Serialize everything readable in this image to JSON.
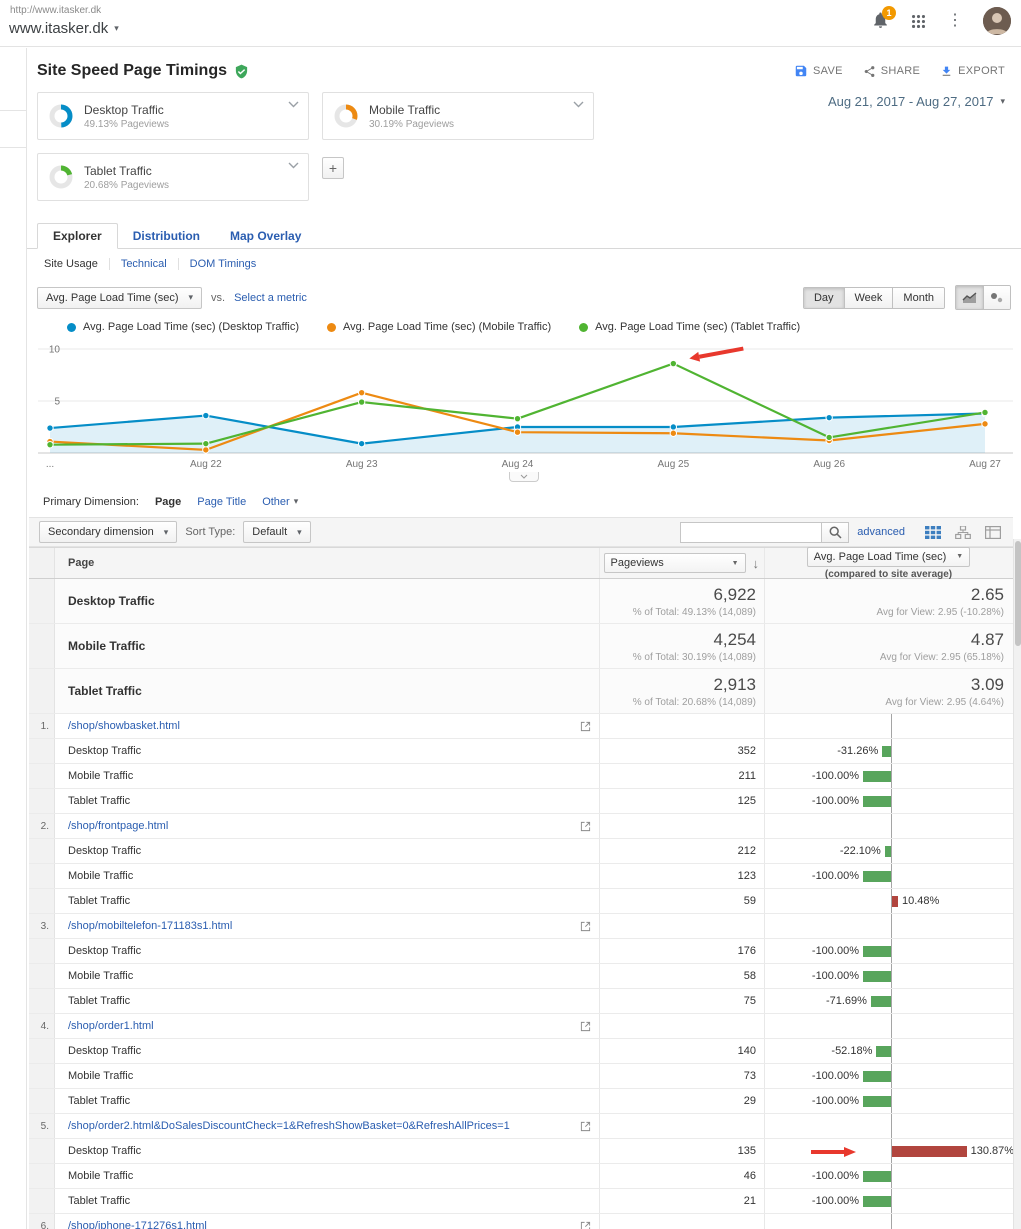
{
  "topbar": {
    "url_label": "http://www.itasker.dk",
    "account_name": "www.itasker.dk",
    "notification_count": "1"
  },
  "report": {
    "title": "Site Speed Page Timings",
    "actions": {
      "save": "SAVE",
      "share": "SHARE",
      "export": "EXPORT"
    },
    "date_range": "Aug 21, 2017 - Aug 27, 2017"
  },
  "segments": [
    {
      "name": "Desktop Traffic",
      "detail": "49.13% Pageviews",
      "percent": 49.13,
      "color": "#058dc7"
    },
    {
      "name": "Mobile Traffic",
      "detail": "30.19% Pageviews",
      "percent": 30.19,
      "color": "#ed8a12"
    },
    {
      "name": "Tablet Traffic",
      "detail": "20.68% Pageviews",
      "percent": 20.68,
      "color": "#50b432"
    }
  ],
  "tabs": {
    "explorer": "Explorer",
    "distribution": "Distribution",
    "map_overlay": "Map Overlay"
  },
  "subtabs": {
    "site_usage": "Site Usage",
    "technical": "Technical",
    "dom_timings": "DOM Timings"
  },
  "metric_bar": {
    "metric_dropdown": "Avg. Page Load Time (sec)",
    "vs_label": "vs.",
    "select_metric": "Select a metric",
    "granularity": [
      "Day",
      "Week",
      "Month"
    ],
    "active_granularity": "Day"
  },
  "chart_data": {
    "type": "line",
    "x": [
      "...",
      "Aug 22",
      "Aug 23",
      "Aug 24",
      "Aug 25",
      "Aug 26",
      "Aug 27"
    ],
    "ylim": [
      0,
      10
    ],
    "yticks": [
      5,
      10
    ],
    "legend_position": "top",
    "series": [
      {
        "name": "Avg. Page Load Time (sec) (Desktop Traffic)",
        "color": "#058dc7",
        "area": true,
        "values": [
          2.4,
          3.6,
          0.9,
          2.5,
          2.5,
          3.4,
          3.8
        ]
      },
      {
        "name": "Avg. Page Load Time (sec) (Mobile Traffic)",
        "color": "#ed8a12",
        "area": false,
        "values": [
          1.1,
          0.3,
          5.8,
          2.0,
          1.9,
          1.2,
          2.8
        ]
      },
      {
        "name": "Avg. Page Load Time (sec) (Tablet Traffic)",
        "color": "#50b432",
        "area": false,
        "values": [
          0.8,
          0.9,
          4.9,
          3.3,
          8.6,
          1.5,
          3.9
        ]
      }
    ],
    "annotation": {
      "type": "red-arrow",
      "target_series": 2,
      "target_index": 4
    }
  },
  "primary_dimension": {
    "label": "Primary Dimension:",
    "options": [
      "Page",
      "Page Title",
      "Other"
    ],
    "active": "Page"
  },
  "table_toolbar": {
    "secondary_dimension": "Secondary dimension",
    "sort_type_label": "Sort Type:",
    "sort_type_value": "Default",
    "search_value": "",
    "advanced_label": "advanced"
  },
  "table": {
    "columns": {
      "page": "Page",
      "pageviews": "Pageviews",
      "load_time": "Avg. Page Load Time (sec)",
      "load_time_sub": "(compared to site average)"
    },
    "summary_rows": [
      {
        "name": "Desktop Traffic",
        "pageviews": "6,922",
        "pageviews_sub": "% of Total: 49.13% (14,089)",
        "load_time": "2.65",
        "load_time_sub": "Avg for View: 2.95 (-10.28%)"
      },
      {
        "name": "Mobile Traffic",
        "pageviews": "4,254",
        "pageviews_sub": "% of Total: 30.19% (14,089)",
        "load_time": "4.87",
        "load_time_sub": "Avg for View: 2.95 (65.18%)"
      },
      {
        "name": "Tablet Traffic",
        "pageviews": "2,913",
        "pageviews_sub": "% of Total: 20.68% (14,089)",
        "load_time": "3.09",
        "load_time_sub": "Avg for View: 2.95 (4.64%)"
      }
    ],
    "rows": [
      {
        "num": "1.",
        "page": "/shop/showbasket.html",
        "segments": [
          {
            "name": "Desktop Traffic",
            "pageviews": "352",
            "delta": "-31.26%",
            "delta_value": -31.26
          },
          {
            "name": "Mobile Traffic",
            "pageviews": "211",
            "delta": "-100.00%",
            "delta_value": -100
          },
          {
            "name": "Tablet Traffic",
            "pageviews": "125",
            "delta": "-100.00%",
            "delta_value": -100
          }
        ]
      },
      {
        "num": "2.",
        "page": "/shop/frontpage.html",
        "segments": [
          {
            "name": "Desktop Traffic",
            "pageviews": "212",
            "delta": "-22.10%",
            "delta_value": -22.1
          },
          {
            "name": "Mobile Traffic",
            "pageviews": "123",
            "delta": "-100.00%",
            "delta_value": -100
          },
          {
            "name": "Tablet Traffic",
            "pageviews": "59",
            "delta": "10.48%",
            "delta_value": 10.48
          }
        ]
      },
      {
        "num": "3.",
        "page": "/shop/mobiltelefon-171183s1.html",
        "segments": [
          {
            "name": "Desktop Traffic",
            "pageviews": "176",
            "delta": "-100.00%",
            "delta_value": -100
          },
          {
            "name": "Mobile Traffic",
            "pageviews": "58",
            "delta": "-100.00%",
            "delta_value": -100
          },
          {
            "name": "Tablet Traffic",
            "pageviews": "75",
            "delta": "-71.69%",
            "delta_value": -71.69
          }
        ]
      },
      {
        "num": "4.",
        "page": "/shop/order1.html",
        "segments": [
          {
            "name": "Desktop Traffic",
            "pageviews": "140",
            "delta": "-52.18%",
            "delta_value": -52.18
          },
          {
            "name": "Mobile Traffic",
            "pageviews": "73",
            "delta": "-100.00%",
            "delta_value": -100
          },
          {
            "name": "Tablet Traffic",
            "pageviews": "29",
            "delta": "-100.00%",
            "delta_value": -100
          }
        ]
      },
      {
        "num": "5.",
        "page": "/shop/order2.html&DoSalesDiscountCheck=1&RefreshShowBasket=0&RefreshAllPrices=1",
        "segments": [
          {
            "name": "Desktop Traffic",
            "pageviews": "135",
            "delta": "130.87%",
            "delta_value": 130.87,
            "arrow": true
          },
          {
            "name": "Mobile Traffic",
            "pageviews": "46",
            "delta": "-100.00%",
            "delta_value": -100
          },
          {
            "name": "Tablet Traffic",
            "pageviews": "21",
            "delta": "-100.00%",
            "delta_value": -100
          }
        ]
      },
      {
        "num": "6.",
        "page": "/shop/iphone-171276s1.html",
        "segments": []
      }
    ]
  },
  "colors": {
    "positive_bar": "#b1453e",
    "negative_bar": "#58a55c",
    "link": "#2a5db0",
    "annotation_red": "#e8382d"
  },
  "icons": {
    "caret_down": "▾",
    "select_arrow": "▼",
    "sort_desc": "↓",
    "kebab": "⋮",
    "plus": "+"
  }
}
